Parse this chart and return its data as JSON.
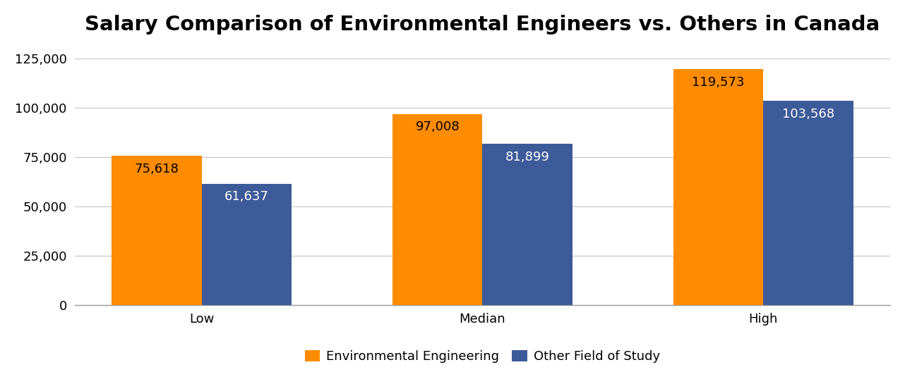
{
  "title": "Salary Comparison of Environmental Engineers vs. Others in Canada",
  "categories": [
    "Low",
    "Median",
    "High"
  ],
  "env_engineering": [
    75618,
    97008,
    119573
  ],
  "other_field": [
    61637,
    81899,
    103568
  ],
  "env_color": "#FF8C00",
  "other_color": "#3D5A99",
  "bar_width": 0.32,
  "ylim": [
    0,
    132000
  ],
  "yticks": [
    0,
    25000,
    50000,
    75000,
    100000,
    125000
  ],
  "legend_labels": [
    "Environmental Engineering",
    "Other Field of Study"
  ],
  "title_fontsize": 21,
  "tick_fontsize": 13,
  "value_fontsize": 13,
  "legend_fontsize": 13,
  "background_color": "#FFFFFF",
  "grid_color": "#C8C8C8",
  "env_label_color": "black",
  "other_label_color": "white"
}
